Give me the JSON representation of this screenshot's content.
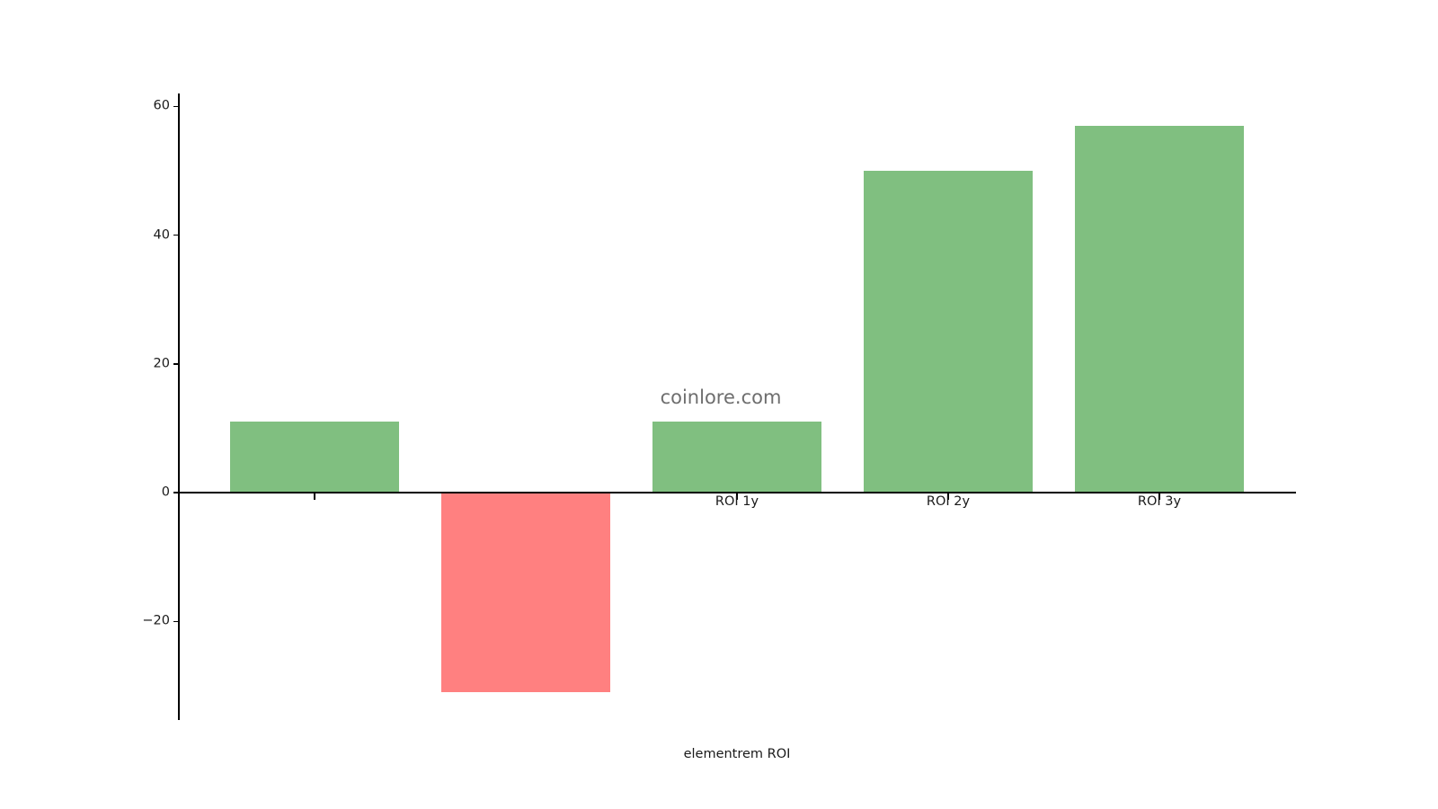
{
  "watermark": "coinlore.com",
  "chart_data": {
    "type": "bar",
    "title": "",
    "categories": [
      "",
      "",
      "ROI 1y",
      "ROI 2y",
      "ROI 3y"
    ],
    "values": [
      11,
      -31,
      11,
      50,
      57
    ],
    "xlabel": "elementrem ROI",
    "ylabel": "",
    "yticks": [
      -20,
      0,
      20,
      40,
      60
    ],
    "ylim": [
      -35.4,
      61.4
    ],
    "grid": false,
    "legend": null,
    "bar_colors": {
      "positive": "#80bf80",
      "negative": "#ff8080"
    },
    "axis_color": "#000000",
    "text_color": "#1a1a1a",
    "watermark_color": "#6e6e6e",
    "background_color": "#ffffff"
  }
}
